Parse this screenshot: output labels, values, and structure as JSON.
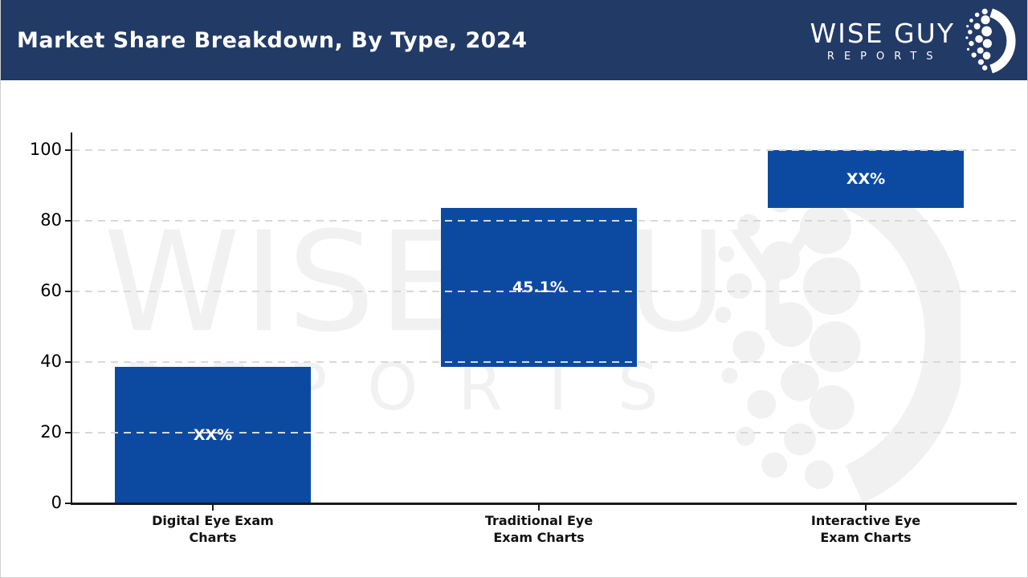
{
  "header": {
    "title": "Market Share Breakdown, By Type, 2024",
    "bg_color": "#223A66",
    "text_color": "#ffffff"
  },
  "logo": {
    "brand": "WISE GUY",
    "sub": "REPORTS"
  },
  "watermark": {
    "wordmark": "WISE GUY",
    "sub": "REPORTS",
    "color": "#f1f1f1"
  },
  "chart_data": {
    "type": "bar",
    "subtype": "floating-waterfall",
    "title": "Market Share Breakdown, By Type, 2024",
    "categories": [
      [
        "Digital Eye Exam",
        "Charts"
      ],
      [
        "Traditional Eye",
        "Exam Charts"
      ],
      [
        "Interactive Eye",
        "Exam Charts"
      ]
    ],
    "series": [
      {
        "name": "Digital Eye Exam Charts",
        "start": 0,
        "end": 38.6,
        "label": "XX%"
      },
      {
        "name": "Traditional Eye Exam Charts",
        "start": 38.6,
        "end": 83.7,
        "label": "45.1%"
      },
      {
        "name": "Interactive Eye Exam Charts",
        "start": 83.7,
        "end": 100,
        "label": "XX%"
      }
    ],
    "xlabel": "",
    "ylabel": "",
    "ylim": [
      0,
      100
    ],
    "yticks": [
      0,
      20,
      40,
      60,
      80,
      100
    ],
    "grid": {
      "horizontal": true,
      "style": "dashed",
      "color": "#d8d8d8",
      "above_bars": true
    },
    "legend": "none",
    "bar_color": "#0c4aa2",
    "bar_label_color": "#ffffff",
    "axis_color": "#1a1a1a"
  }
}
